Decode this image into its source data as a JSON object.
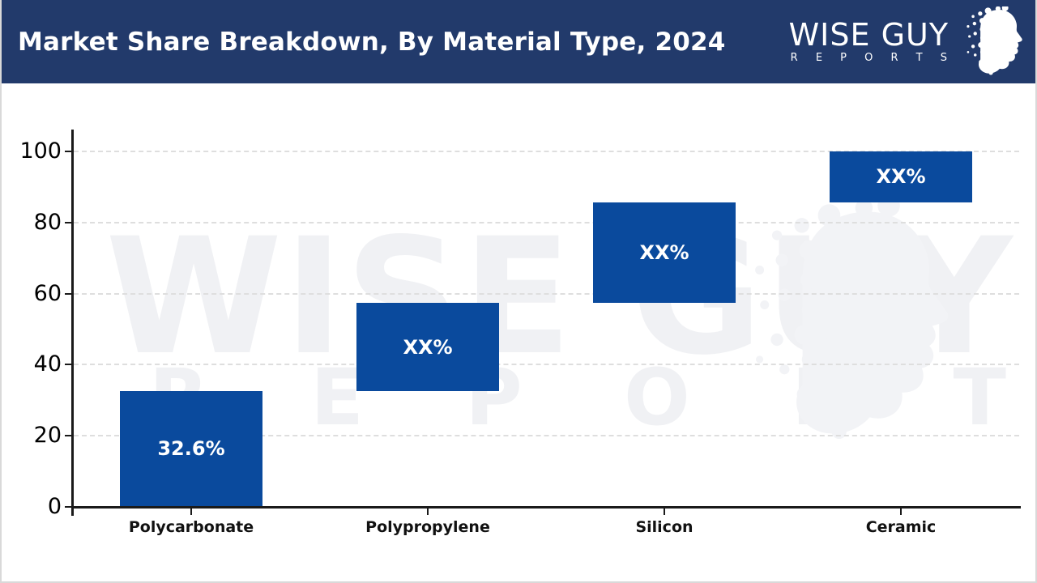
{
  "header": {
    "title": "Market Share Breakdown, By Material Type, 2024",
    "logo": {
      "line1": "WISE GUY",
      "line2": "R E P O R T S"
    }
  },
  "watermark": {
    "line1": "WISE GUY",
    "line2": "R E P O R T S"
  },
  "chart_data": {
    "type": "bar",
    "subtype": "waterfall-floating-bars",
    "title": "Market Share Breakdown, By Material Type, 2024",
    "categories": [
      "Polycarbonate",
      "Polypropylene",
      "Silicon",
      "Ceramic"
    ],
    "bars": [
      {
        "category": "Polycarbonate",
        "start": 0,
        "end": 32.6,
        "label": "32.6%"
      },
      {
        "category": "Polypropylene",
        "start": 32.6,
        "end": 57.3,
        "label": "XX%"
      },
      {
        "category": "Silicon",
        "start": 57.3,
        "end": 85.7,
        "label": "XX%"
      },
      {
        "category": "Ceramic",
        "start": 85.7,
        "end": 100,
        "label": "XX%"
      }
    ],
    "xlabel": "",
    "ylabel": "",
    "ylim": [
      0,
      100
    ],
    "yticks": [
      0,
      20,
      40,
      60,
      80,
      100
    ],
    "grid": "horizontal-dashed",
    "legend": "none",
    "bar_color": "#0A4A9D",
    "bar_label_color": "#FFFFFF"
  },
  "colors": {
    "header_bg": "#223A6B",
    "header_text": "#FFFFFF",
    "bar_fill": "#0A4A9D",
    "axis_line": "#1A1A1A",
    "gridline": "#DEDEDE",
    "tick_label": "#000000",
    "watermark": "#F0F1F4",
    "page_bg": "#FFFFFF"
  }
}
